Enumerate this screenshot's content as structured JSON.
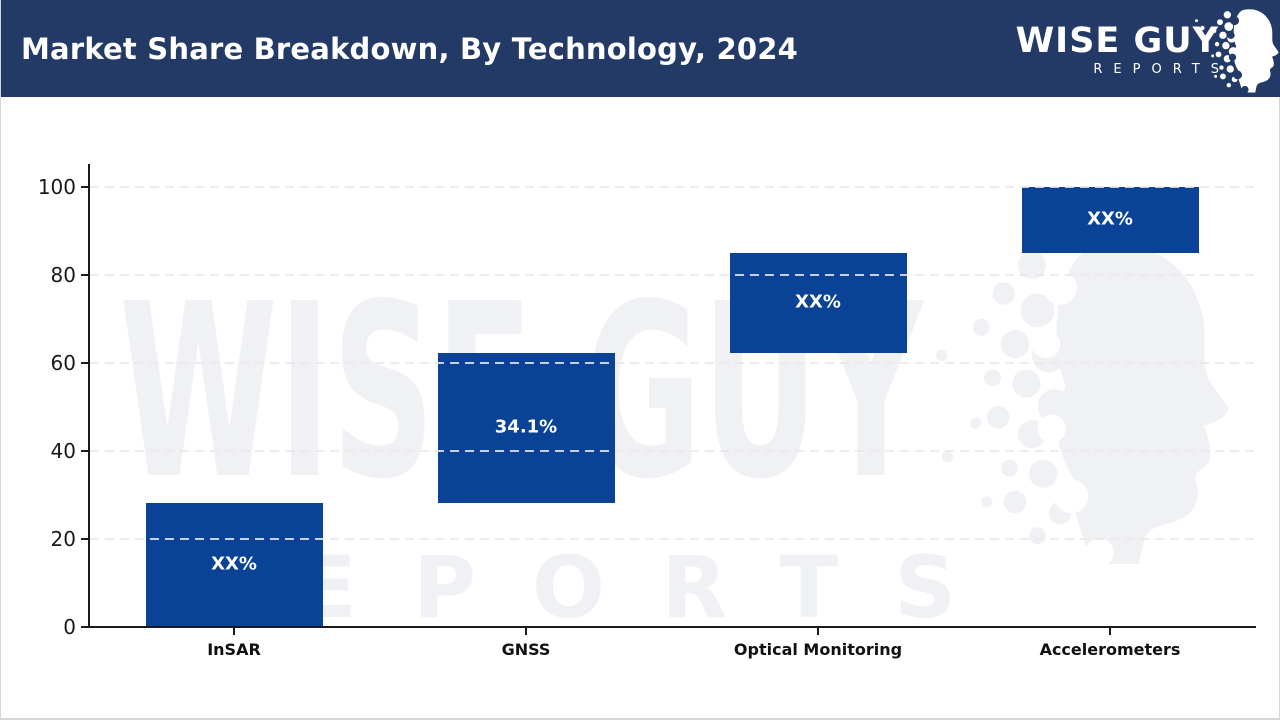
{
  "header": {
    "title": "Market Share Breakdown, By Technology, 2024",
    "logo": {
      "line1": "WISE GUY",
      "line2": "REPORTS"
    }
  },
  "watermark": {
    "line1": "WISE GUY",
    "line2": "REPORTS"
  },
  "colors": {
    "header_bg": "#243A66",
    "bar": "#0A4396",
    "bar_label": "#FFFFFF",
    "grid": "#E9E9E9",
    "axis": "#1A1A1A",
    "watermark": "#F0F1F4"
  },
  "chart_data": {
    "type": "bar",
    "subtype": "waterfall",
    "title": "Market Share Breakdown, By Technology, 2024",
    "categories": [
      "InSAR",
      "GNSS",
      "Optical Monitoring",
      "Accelerometers"
    ],
    "segments": [
      {
        "category": "InSAR",
        "start": 0,
        "end": 28.2,
        "value_label": "XX%"
      },
      {
        "category": "GNSS",
        "start": 28.2,
        "end": 62.3,
        "value_label": "34.1%"
      },
      {
        "category": "Optical Monitoring",
        "start": 62.3,
        "end": 85.0,
        "value_label": "XX%"
      },
      {
        "category": "Accelerometers",
        "start": 85.0,
        "end": 100,
        "value_label": "XX%"
      }
    ],
    "yticks": [
      0,
      20,
      40,
      60,
      80,
      100
    ],
    "ylim": [
      0,
      105
    ],
    "xlabel": "",
    "ylabel": "",
    "unit": "%",
    "grid": "horizontal-dashed",
    "legend": "none"
  }
}
